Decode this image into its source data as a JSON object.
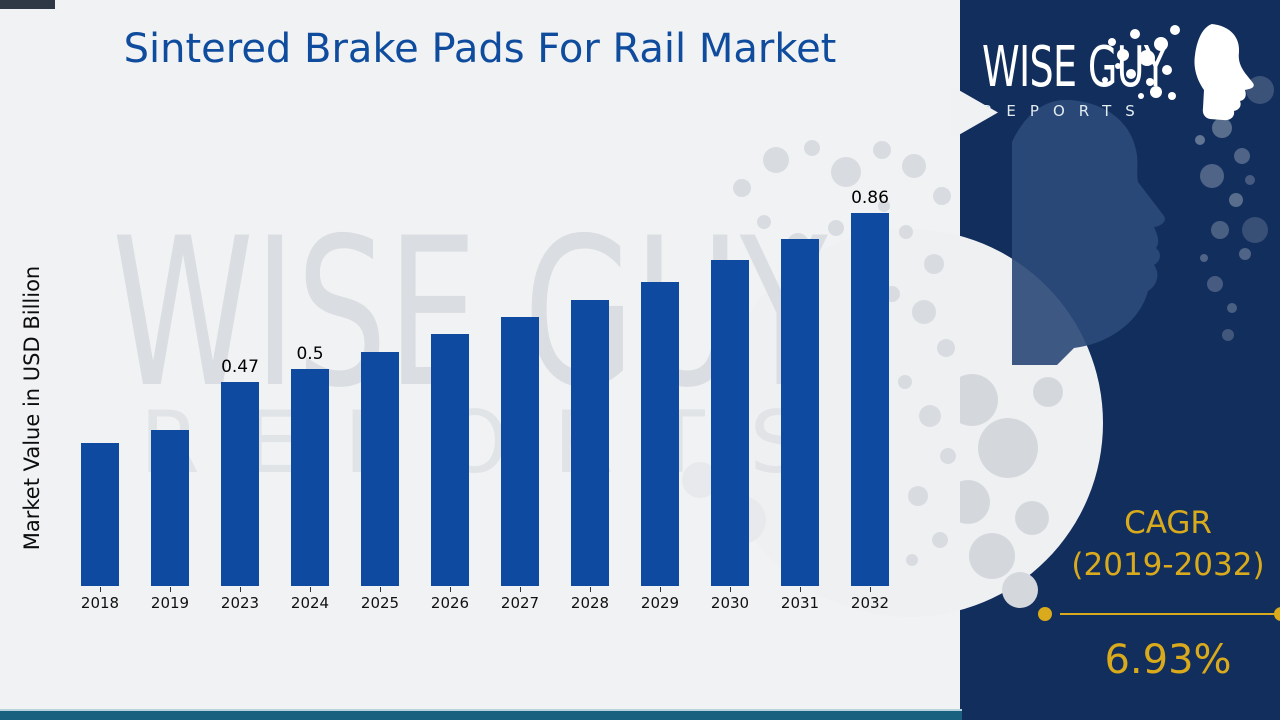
{
  "header": {
    "title": "Sintered Brake Pads For Rail Market"
  },
  "chart_data": {
    "type": "bar",
    "title": "Sintered Brake Pads For Rail Market",
    "xlabel": "",
    "ylabel": "Market Value in USD Billion",
    "categories": [
      "2018",
      "2019",
      "2023",
      "2024",
      "2025",
      "2026",
      "2027",
      "2028",
      "2029",
      "2030",
      "2031",
      "2032"
    ],
    "values": [
      0.33,
      0.36,
      0.47,
      0.5,
      0.54,
      0.58,
      0.62,
      0.66,
      0.7,
      0.75,
      0.8,
      0.86
    ],
    "bar_labels": [
      "",
      "",
      "0.47",
      "0.5",
      "",
      "",
      "",
      "",
      "",
      "",
      "",
      "0.86"
    ],
    "ylim": [
      0,
      1.0
    ],
    "grid": false,
    "legend": false,
    "bar_color": "#0d4aa0"
  },
  "watermark": {
    "line1": "WISE GUY",
    "line2": "REPORTS"
  },
  "logo": {
    "line1": "WISE GUY",
    "line2": "REPORTS",
    "face_icon": "dotted-face-profile-icon"
  },
  "sidebar": {
    "cagr_label": "CAGR",
    "cagr_period": "(2019-2032)",
    "cagr_value": "6.93%"
  },
  "colors": {
    "background": "#f1f2f3",
    "bar_blue": "#0d4aa0",
    "title_blue": "#0f4c9e",
    "panel_navy": "#122e5c",
    "panel_face_navy": "#2d4b7a",
    "accent_gold": "#d9aa1b",
    "teal_strip": "#1a6180",
    "watermark_gray": "#dadde1"
  }
}
